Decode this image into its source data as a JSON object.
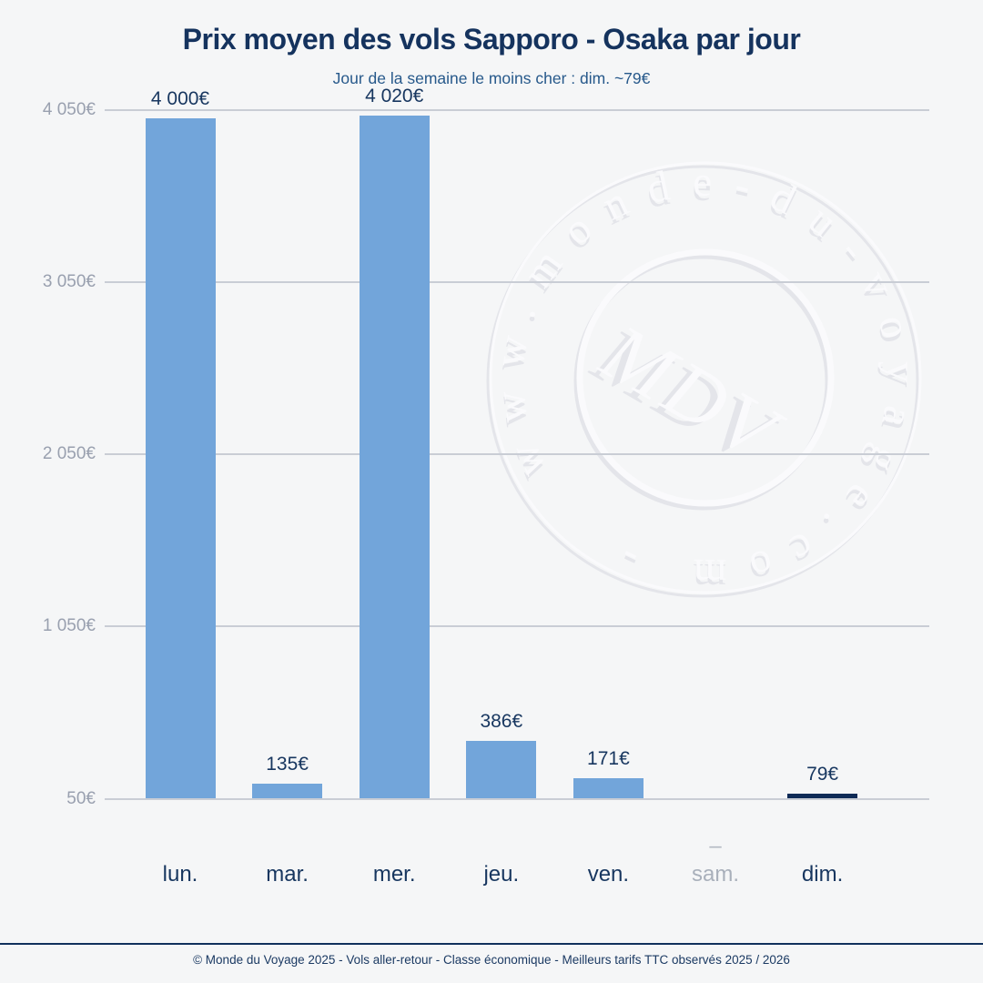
{
  "watermark": {
    "ring_text": "www.monde-du-voyage.com -",
    "center_text": "MDV"
  },
  "footer": {
    "text": "© Monde du Voyage 2025 - Vols aller-retour - Classe économique - Meilleurs tarifs TTC observés 2025 / 2026"
  },
  "colors": {
    "background": "#f5f6f7",
    "title_navy": "#15335e",
    "subtitle_blue": "#27598b",
    "axis_label_gray": "#99a0af",
    "gridline_gray": "#c9cdd5",
    "bar_blue": "#72a5da",
    "highlight_navy": "#0e2a56",
    "muted_gray": "#a9b0bb"
  },
  "chart_data": {
    "type": "bar",
    "title": "Prix moyen des vols Sapporo - Osaka par jour",
    "subtitle": "Jour de la semaine le moins cher : dim. ~79€",
    "categories": [
      "lun.",
      "mar.",
      "mer.",
      "jeu.",
      "ven.",
      "sam.",
      "dim."
    ],
    "values": [
      4000,
      135,
      4020,
      386,
      171,
      null,
      79
    ],
    "value_labels": [
      "4 000€",
      "135€",
      "4 020€",
      "386€",
      "171€",
      "–",
      "79€"
    ],
    "no_data_placeholder": "–",
    "no_data_index": 5,
    "highlight_index": 6,
    "axis_min": 50,
    "axis_max": 4050,
    "ticks": [
      {
        "value": 4050,
        "label": "4 050€"
      },
      {
        "value": 3050,
        "label": "3 050€"
      },
      {
        "value": 2050,
        "label": "2 050€"
      },
      {
        "value": 1050,
        "label": "1 050€"
      },
      {
        "value": 50,
        "label": "50€"
      }
    ],
    "grid": true,
    "legend": false,
    "xlabel": "",
    "ylabel": "",
    "bar_color": "#72a5da",
    "highlight_color": "#0e2a56"
  }
}
